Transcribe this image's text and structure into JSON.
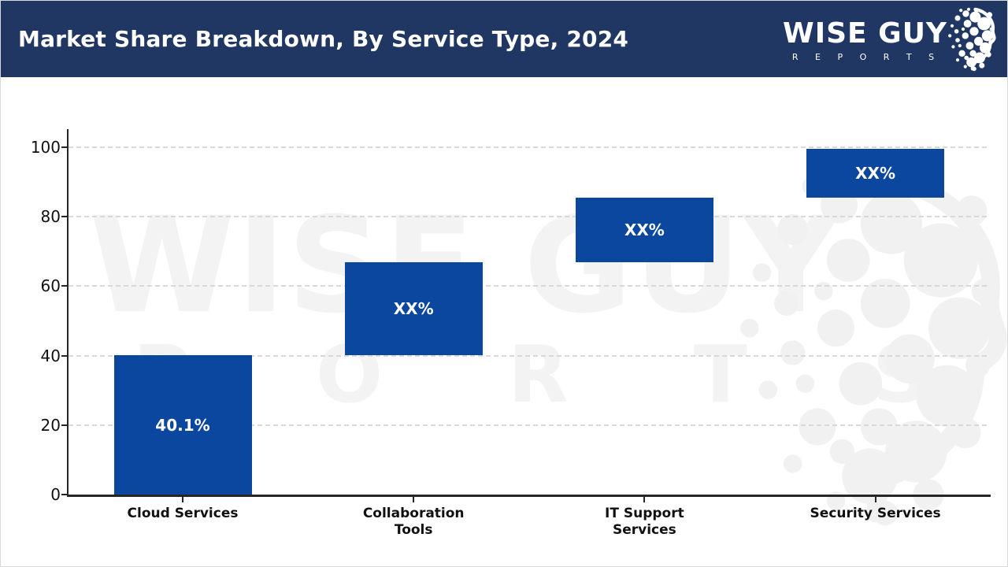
{
  "header": {
    "title": "Market Share Breakdown, By Service Type, 2024",
    "brand": {
      "name": "WISE GUY",
      "sub": "R E P O R T S"
    },
    "bg_color": "#203764"
  },
  "watermark": {
    "line1": "WISE GUY",
    "line2": "P O R T S"
  },
  "colors": {
    "header_bg": "#203764",
    "bar": "#0b479f",
    "bar_label": "#ffffff",
    "grid": "#d8d8d8",
    "axis": "#262626",
    "watermark": "#f3f3f3",
    "page_border": "#d9d9d9"
  },
  "chart_data": {
    "type": "bar",
    "variant": "waterfall-stacked",
    "title": "Market Share Breakdown, By Service Type, 2024",
    "categories": [
      "Cloud Services",
      "Collaboration Tools",
      "IT Support Services",
      "Security Services"
    ],
    "category_label_lines": [
      [
        "Cloud Services"
      ],
      [
        "Collaboration",
        "Tools"
      ],
      [
        "IT Support",
        "Services"
      ],
      [
        "Security Services"
      ]
    ],
    "segments": [
      {
        "category": "Cloud Services",
        "start": 0,
        "end": 40.1,
        "label": "40.1%"
      },
      {
        "category": "Collaboration Tools",
        "start": 40.1,
        "end": 66.9,
        "label": "XX%"
      },
      {
        "category": "IT Support Services",
        "start": 66.9,
        "end": 85.5,
        "label": "XX%"
      },
      {
        "category": "Security Services",
        "start": 85.5,
        "end": 99.6,
        "label": "XX%"
      }
    ],
    "yticks": [
      0,
      20,
      40,
      60,
      80,
      100
    ],
    "ylim": [
      0,
      105
    ],
    "xlabel": "",
    "ylabel": "",
    "legend": "none",
    "grid": {
      "axis": "y",
      "style": "dashed"
    },
    "bar_color": "#0b479f",
    "bar_label_color": "#ffffff"
  }
}
